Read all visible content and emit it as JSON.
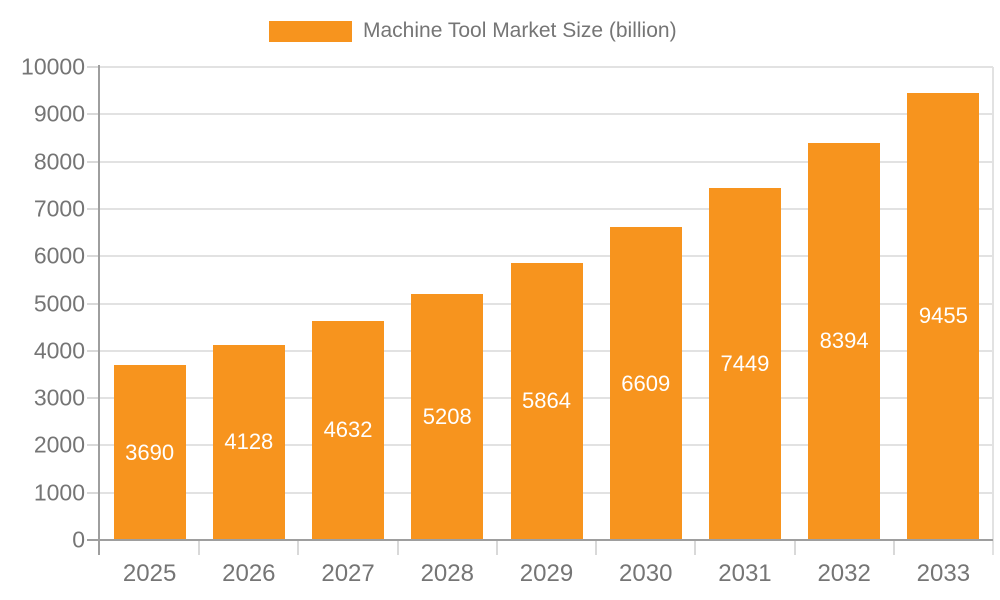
{
  "legend": {
    "label": "Machine Tool Market Size (billion)"
  },
  "chart_data": {
    "type": "bar",
    "title": "Machine Tool Market Size (billion)",
    "series_name": "Machine Tool Market Size (billion)",
    "categories": [
      "2025",
      "2026",
      "2027",
      "2028",
      "2029",
      "2030",
      "2031",
      "2032",
      "2033"
    ],
    "values": [
      3690,
      4128,
      4632,
      5208,
      5864,
      6609,
      7449,
      8394,
      9455
    ],
    "value_labels": [
      "3690",
      "4128",
      "4632",
      "5208",
      "5864",
      "6609",
      "7449",
      "8394",
      "9455"
    ],
    "xlabel": "",
    "ylabel": "",
    "ylim": [
      0,
      10000
    ],
    "y_tick_step": 1000,
    "y_ticks": [
      0,
      1000,
      2000,
      3000,
      4000,
      5000,
      6000,
      7000,
      8000,
      9000,
      10000
    ],
    "grid": true,
    "legend_position": "top",
    "value_labels_position": "inside-center",
    "bar_color": "#F7941E",
    "value_label_color": "#ffffff",
    "axis_text_color": "#757575",
    "axis_line_color": "#9e9e9e",
    "grid_line_color": "#e2e2e2",
    "tick_line_color": "#d9d9d9",
    "background_color": "#ffffff"
  }
}
